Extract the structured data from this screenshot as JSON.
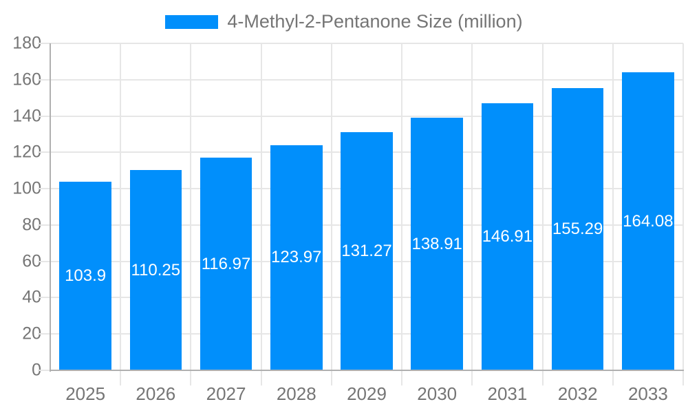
{
  "legend": {
    "label": "4-Methyl-2-Pentanone Size (million)"
  },
  "chart_data": {
    "type": "bar",
    "title": "4-Methyl-2-Pentanone Size (million)",
    "categories": [
      "2025",
      "2026",
      "2027",
      "2028",
      "2029",
      "2030",
      "2031",
      "2032",
      "2033"
    ],
    "values": [
      103.9,
      110.25,
      116.97,
      123.97,
      131.27,
      138.91,
      146.91,
      155.29,
      164.08
    ],
    "xlabel": "",
    "ylabel": "",
    "ylim": [
      0,
      180
    ],
    "yticks": [
      0,
      20,
      40,
      60,
      80,
      100,
      120,
      140,
      160,
      180
    ],
    "grid": true,
    "legend_position": "top",
    "colors": {
      "bar": "#018FFB",
      "grid": "#e6e6e6",
      "axis": "#b0b0b0",
      "tick_text": "#757575",
      "bar_label_text": "#ffffff"
    }
  }
}
